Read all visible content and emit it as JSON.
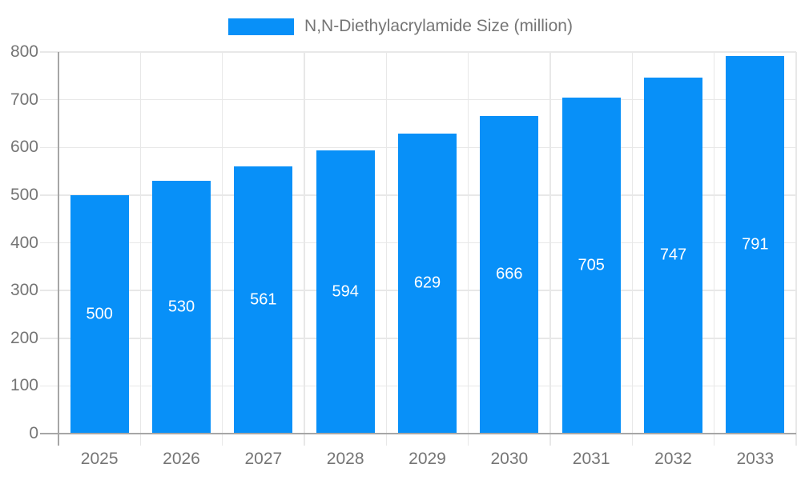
{
  "legend": {
    "label": "N,N-Diethylacrylamide Size (million)",
    "swatch_color": "#0890F8",
    "position": "top"
  },
  "chart_data": {
    "type": "bar",
    "title": "N,N-Diethylacrylamide Size (million)",
    "series_name": "N,N-Diethylacrylamide Size (million)",
    "categories": [
      "2025",
      "2026",
      "2027",
      "2028",
      "2029",
      "2030",
      "2031",
      "2032",
      "2033"
    ],
    "values": [
      500,
      530,
      561,
      594,
      629,
      666,
      705,
      747,
      791
    ],
    "value_labels_shown": true,
    "xlabel": "",
    "ylabel": "",
    "ylim": [
      0,
      800
    ],
    "yticks": [
      0,
      100,
      200,
      300,
      400,
      500,
      600,
      700,
      800
    ],
    "grid": true,
    "legend_position": "top",
    "bar_color": "#0890F8",
    "value_label_color": "#ffffff",
    "axis_text_color": "#757575",
    "axis_line_color": "#a6a6a6",
    "gridline_color": "#e8e8e8",
    "background_color": "#ffffff"
  }
}
